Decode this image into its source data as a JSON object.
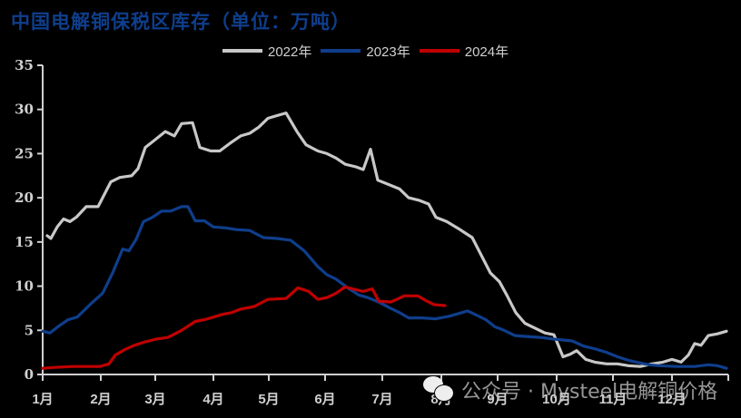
{
  "title": "中国电解铜保税区库存（单位：万吨）",
  "legend": [
    {
      "label": "2022年",
      "color": "#c8c8c8"
    },
    {
      "label": "2023年",
      "color": "#0f3e8c"
    },
    {
      "label": "2024年",
      "color": "#c00000"
    }
  ],
  "watermark": "公众号 · Mysteel电解铜价格",
  "chart_data": {
    "type": "line",
    "title": "中国电解铜保税区库存（单位：万吨）",
    "xlabel": "",
    "ylabel": "万吨",
    "ylim": [
      0,
      35
    ],
    "yticks": [
      0,
      5,
      10,
      15,
      20,
      25,
      30,
      35
    ],
    "xticks": [
      "1月",
      "2月",
      "3月",
      "4月",
      "5月",
      "6月",
      "7月",
      "8月",
      "9月",
      "10月",
      "11月",
      "12月"
    ],
    "grid": false,
    "legend_position": "top",
    "series": [
      {
        "name": "2022年",
        "color": "#c8c8c8",
        "points": [
          [
            52,
            15.7
          ],
          [
            56,
            15.4
          ],
          [
            63,
            16.7
          ],
          [
            70,
            17.6
          ],
          [
            77,
            17.3
          ],
          [
            84,
            17.8
          ],
          [
            95,
            19.0
          ],
          [
            108,
            19.0
          ],
          [
            122,
            21.8
          ],
          [
            132,
            22.3
          ],
          [
            145,
            22.5
          ],
          [
            152,
            23.3
          ],
          [
            160,
            25.7
          ],
          [
            170,
            26.5
          ],
          [
            182,
            27.5
          ],
          [
            192,
            27.0
          ],
          [
            200,
            28.4
          ],
          [
            212,
            28.5
          ],
          [
            220,
            25.7
          ],
          [
            232,
            25.3
          ],
          [
            242,
            25.3
          ],
          [
            255,
            26.3
          ],
          [
            265,
            27.0
          ],
          [
            275,
            27.3
          ],
          [
            285,
            28.0
          ],
          [
            295,
            29.0
          ],
          [
            305,
            29.3
          ],
          [
            315,
            29.6
          ],
          [
            327,
            27.5
          ],
          [
            337,
            26.0
          ],
          [
            350,
            25.3
          ],
          [
            360,
            25.0
          ],
          [
            370,
            24.5
          ],
          [
            380,
            23.8
          ],
          [
            392,
            23.5
          ],
          [
            400,
            23.2
          ],
          [
            408,
            25.5
          ],
          [
            416,
            22.0
          ],
          [
            428,
            21.5
          ],
          [
            440,
            21.0
          ],
          [
            450,
            20.0
          ],
          [
            462,
            19.7
          ],
          [
            472,
            19.3
          ],
          [
            480,
            17.8
          ],
          [
            492,
            17.3
          ],
          [
            505,
            16.5
          ],
          [
            520,
            15.5
          ],
          [
            530,
            13.5
          ],
          [
            540,
            11.5
          ],
          [
            550,
            10.5
          ],
          [
            558,
            9.0
          ],
          [
            568,
            7.0
          ],
          [
            578,
            5.8
          ],
          [
            590,
            5.2
          ],
          [
            600,
            4.7
          ],
          [
            610,
            4.5
          ],
          [
            620,
            2.0
          ],
          [
            628,
            2.3
          ],
          [
            635,
            2.7
          ],
          [
            645,
            1.7
          ],
          [
            655,
            1.4
          ],
          [
            668,
            1.2
          ],
          [
            680,
            1.2
          ],
          [
            692,
            1.0
          ],
          [
            705,
            0.9
          ],
          [
            718,
            1.2
          ],
          [
            730,
            1.4
          ],
          [
            740,
            1.7
          ],
          [
            750,
            1.4
          ],
          [
            758,
            2.2
          ],
          [
            765,
            3.5
          ],
          [
            772,
            3.3
          ],
          [
            780,
            4.4
          ],
          [
            790,
            4.6
          ],
          [
            800,
            4.9
          ]
        ]
      },
      {
        "name": "2023年",
        "color": "#0f3e8c",
        "points": [
          [
            47,
            4.9
          ],
          [
            55,
            4.7
          ],
          [
            65,
            5.5
          ],
          [
            75,
            6.2
          ],
          [
            85,
            6.5
          ],
          [
            100,
            8.0
          ],
          [
            113,
            9.2
          ],
          [
            124,
            11.5
          ],
          [
            135,
            14.2
          ],
          [
            142,
            14.0
          ],
          [
            150,
            15.3
          ],
          [
            158,
            17.3
          ],
          [
            168,
            17.8
          ],
          [
            178,
            18.5
          ],
          [
            188,
            18.5
          ],
          [
            200,
            19.0
          ],
          [
            207,
            19.0
          ],
          [
            215,
            17.4
          ],
          [
            225,
            17.4
          ],
          [
            235,
            16.7
          ],
          [
            248,
            16.6
          ],
          [
            260,
            16.4
          ],
          [
            275,
            16.3
          ],
          [
            290,
            15.5
          ],
          [
            305,
            15.4
          ],
          [
            320,
            15.2
          ],
          [
            335,
            14.0
          ],
          [
            350,
            12.2
          ],
          [
            360,
            11.3
          ],
          [
            370,
            10.8
          ],
          [
            383,
            9.8
          ],
          [
            395,
            9.0
          ],
          [
            405,
            8.7
          ],
          [
            417,
            8.2
          ],
          [
            430,
            7.5
          ],
          [
            440,
            7.0
          ],
          [
            450,
            6.4
          ],
          [
            465,
            6.4
          ],
          [
            480,
            6.3
          ],
          [
            495,
            6.6
          ],
          [
            505,
            6.9
          ],
          [
            515,
            7.2
          ],
          [
            525,
            6.7
          ],
          [
            535,
            6.2
          ],
          [
            545,
            5.4
          ],
          [
            555,
            5.0
          ],
          [
            567,
            4.4
          ],
          [
            580,
            4.3
          ],
          [
            595,
            4.2
          ],
          [
            610,
            4.0
          ],
          [
            630,
            3.8
          ],
          [
            643,
            3.2
          ],
          [
            655,
            2.9
          ],
          [
            668,
            2.5
          ],
          [
            680,
            2.0
          ],
          [
            692,
            1.6
          ],
          [
            705,
            1.3
          ],
          [
            715,
            1.1
          ],
          [
            725,
            1.0
          ],
          [
            745,
            0.9
          ],
          [
            765,
            0.9
          ],
          [
            780,
            1.1
          ],
          [
            790,
            1.0
          ],
          [
            800,
            0.7
          ]
        ]
      },
      {
        "name": "2024年",
        "color": "#c00000",
        "points": [
          [
            47,
            0.7
          ],
          [
            60,
            0.8
          ],
          [
            80,
            0.9
          ],
          [
            110,
            0.9
          ],
          [
            120,
            1.2
          ],
          [
            127,
            2.2
          ],
          [
            137,
            2.8
          ],
          [
            148,
            3.3
          ],
          [
            160,
            3.7
          ],
          [
            172,
            4.0
          ],
          [
            185,
            4.2
          ],
          [
            200,
            5.0
          ],
          [
            215,
            6.0
          ],
          [
            225,
            6.2
          ],
          [
            235,
            6.5
          ],
          [
            245,
            6.8
          ],
          [
            255,
            7.0
          ],
          [
            265,
            7.4
          ],
          [
            280,
            7.7
          ],
          [
            295,
            8.5
          ],
          [
            315,
            8.6
          ],
          [
            328,
            9.8
          ],
          [
            340,
            9.4
          ],
          [
            350,
            8.5
          ],
          [
            360,
            8.7
          ],
          [
            370,
            9.2
          ],
          [
            380,
            9.9
          ],
          [
            392,
            9.6
          ],
          [
            400,
            9.4
          ],
          [
            410,
            9.7
          ],
          [
            417,
            8.3
          ],
          [
            430,
            8.2
          ],
          [
            437,
            8.5
          ],
          [
            445,
            8.9
          ],
          [
            460,
            8.9
          ],
          [
            470,
            8.3
          ],
          [
            478,
            7.9
          ],
          [
            490,
            7.8
          ]
        ]
      }
    ]
  }
}
